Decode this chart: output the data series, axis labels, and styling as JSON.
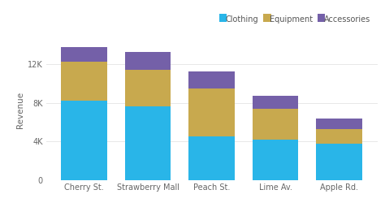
{
  "categories": [
    "Cherry St.",
    "Strawberry Mall",
    "Peach St.",
    "Lime Av.",
    "Apple Rd."
  ],
  "clothing": [
    8200,
    7600,
    4500,
    4200,
    3800
  ],
  "equipment": [
    4000,
    3800,
    5000,
    3200,
    1500
  ],
  "accessories": [
    1500,
    1800,
    1700,
    1300,
    1100
  ],
  "colors": {
    "clothing": "#29b5e8",
    "equipment": "#c8a94e",
    "accessories": "#7460a8"
  },
  "ylabel": "Revenue",
  "legend_labels": [
    "Clothing",
    "Equipment",
    "Accessories"
  ],
  "ylim": [
    0,
    14500
  ],
  "yticks": [
    0,
    4000,
    8000,
    12000
  ],
  "ytick_labels": [
    "0",
    "4K",
    "8K",
    "12K"
  ],
  "background_color": "#ffffff",
  "plot_bg_color": "#ffffff",
  "grid_color": "#e8e8e8",
  "bar_width": 0.72
}
